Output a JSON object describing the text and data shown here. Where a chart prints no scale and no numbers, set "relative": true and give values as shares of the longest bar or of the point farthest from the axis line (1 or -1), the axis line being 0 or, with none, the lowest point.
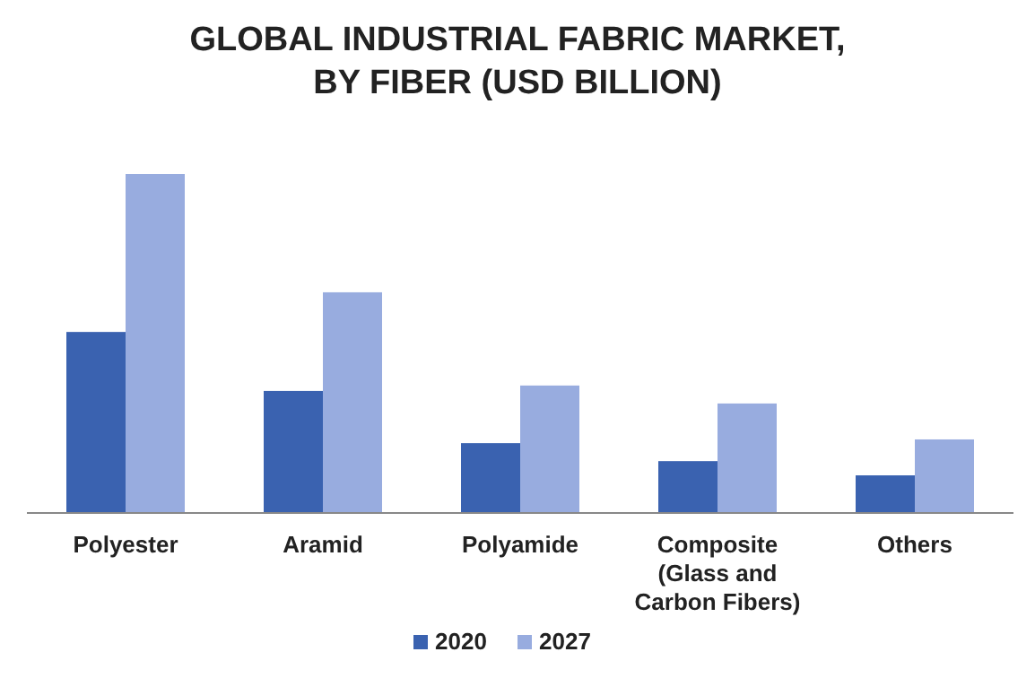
{
  "chart_data": {
    "type": "bar",
    "title": "GLOBAL INDUSTRIAL FABRIC MARKET, BY FIBER (USD BILLION)",
    "relative": true,
    "categories": [
      "Polyester",
      "Aramid",
      "Polyamide",
      "Composite (Glass and Carbon Fibers)",
      "Others"
    ],
    "series": [
      {
        "name": "2020",
        "color": "#3a62b0",
        "values": [
          0.534,
          0.36,
          0.206,
          0.153,
          0.111
        ]
      },
      {
        "name": "2027",
        "color": "#98acdf",
        "values": [
          1,
          0.651,
          0.376,
          0.323,
          0.217
        ]
      }
    ],
    "legend": "bottom",
    "grid": false
  }
}
